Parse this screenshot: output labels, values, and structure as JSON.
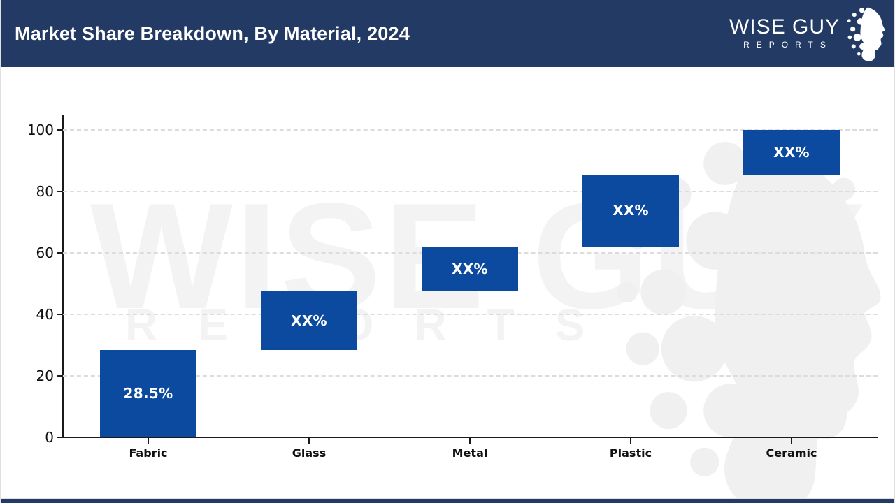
{
  "header": {
    "title": "Market Share Breakdown, By Material, 2024",
    "background_color": "#223A64",
    "logo": {
      "line1": "WISE GUY",
      "line2": "REPORTS",
      "icon": "dotted-head-profile"
    }
  },
  "watermark": {
    "line1": "WISE GUY",
    "line2": "REPORTS",
    "icon": "dotted-head-profile",
    "color": "#f3f3f3"
  },
  "chart_data": {
    "type": "bar",
    "subtype": "waterfall",
    "title": "Market Share Breakdown, By Material, 2024",
    "categories": [
      "Fabric",
      "Glass",
      "Metal",
      "Plastic",
      "Ceramic"
    ],
    "bars": [
      {
        "category": "Fabric",
        "start": 0,
        "end": 28.5,
        "label": "28.5%"
      },
      {
        "category": "Glass",
        "start": 28.5,
        "end": 47.5,
        "label": "XX%"
      },
      {
        "category": "Metal",
        "start": 47.5,
        "end": 62,
        "label": "XX%"
      },
      {
        "category": "Plastic",
        "start": 62,
        "end": 85.5,
        "label": "XX%"
      },
      {
        "category": "Ceramic",
        "start": 85.5,
        "end": 100,
        "label": "XX%"
      }
    ],
    "yticks": [
      0,
      20,
      40,
      60,
      80,
      100
    ],
    "ylim": [
      0,
      105
    ],
    "xlabel": "",
    "ylabel": "",
    "grid": "horizontal-dashed",
    "legend": "none",
    "bar_color": "#0B4A9E",
    "bar_label_color": "#ffffff",
    "axis_color": "#1a1a1a",
    "gridline_color": "#dcdcdc"
  }
}
